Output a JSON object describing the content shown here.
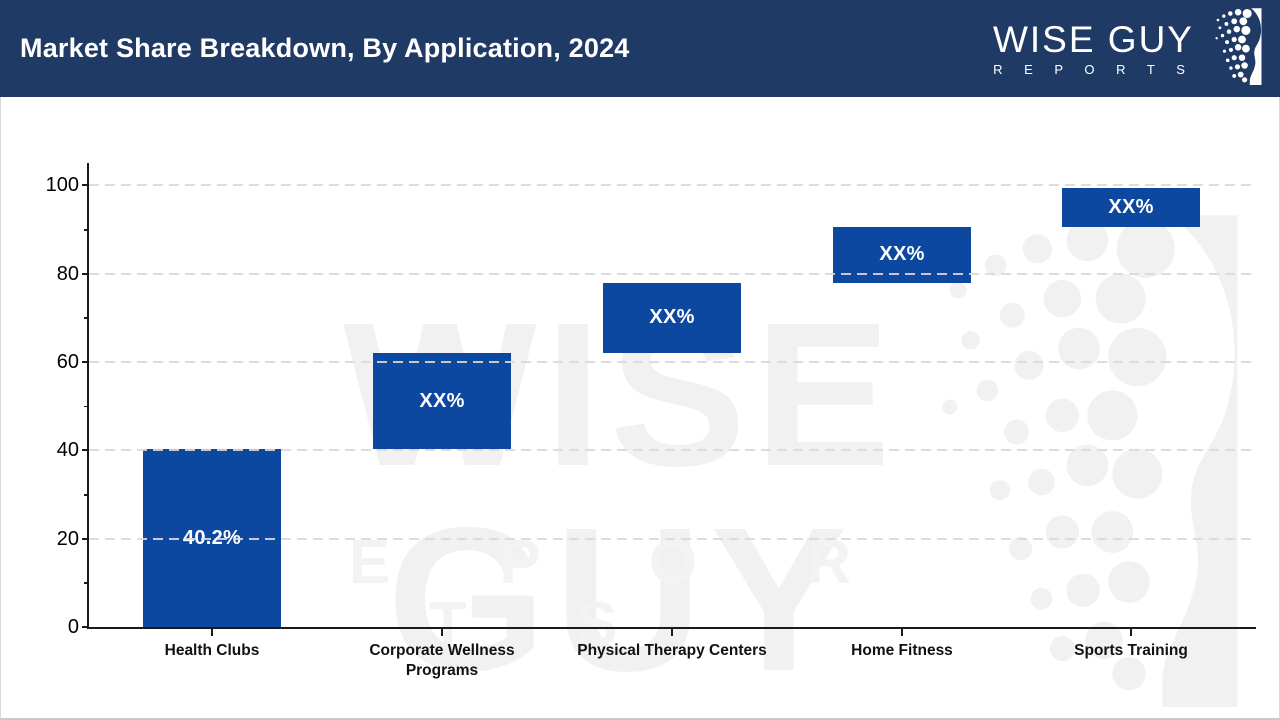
{
  "header": {
    "title": "Market Share Breakdown, By Application, 2024",
    "logo": {
      "line1": "WISE GUY",
      "line2": "R E P O R T S"
    }
  },
  "watermark": {
    "line1": "WISE GUY",
    "line2": "R E P O R T S"
  },
  "colors": {
    "header_bg": "#203a66",
    "bar": "#0d48a0",
    "grid": "#d9d9d9",
    "axis": "#1a1a1a",
    "bar_label": "#ffffff",
    "watermark": "#f1f1f1"
  },
  "chart_data": {
    "type": "bar",
    "subtype": "waterfall",
    "title": "Market Share Breakdown, By Application, 2024",
    "xlabel": "",
    "ylabel": "",
    "ylim": [
      0,
      100
    ],
    "yticks": [
      0,
      20,
      40,
      60,
      80,
      100
    ],
    "grid": "horizontal dashed, drawn over bars",
    "legend": "none",
    "categories": [
      "Health Clubs",
      "Corporate Wellness Programs",
      "Physical Therapy Centers",
      "Home Fitness",
      "Sports Training"
    ],
    "segments": [
      {
        "category": "Health Clubs",
        "start": 0,
        "end": 40.2,
        "label": "40.2%"
      },
      {
        "category": "Corporate Wellness Programs",
        "start": 40.2,
        "end": 62,
        "label": "XX%"
      },
      {
        "category": "Physical Therapy Centers",
        "start": 62,
        "end": 78,
        "label": "XX%"
      },
      {
        "category": "Home Fitness",
        "start": 78,
        "end": 90.5,
        "label": "XX%"
      },
      {
        "category": "Sports Training",
        "start": 90.5,
        "end": 99.5,
        "label": "XX%"
      }
    ]
  }
}
